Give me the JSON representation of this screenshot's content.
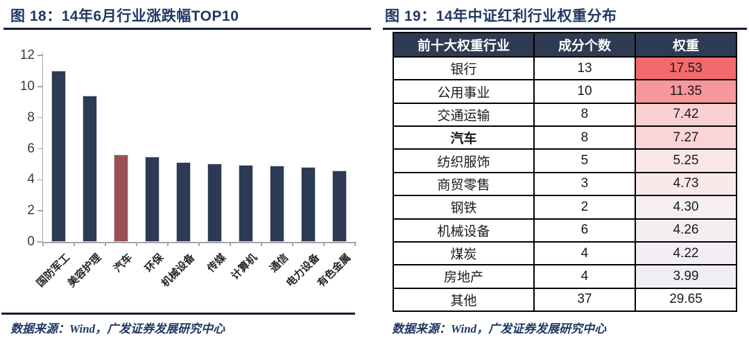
{
  "left_figure": {
    "title": "图 18：14年6月行业涨跌幅TOP10",
    "source": "数据来源：Wind，广发证券发展研究中心"
  },
  "right_figure": {
    "title": "图 19：14年中证红利行业权重分布",
    "source": "数据来源：Wind，广发证券发展研究中心"
  },
  "chart_data": [
    {
      "type": "bar",
      "title": "14年6月行业涨跌幅TOP10",
      "categories": [
        "国防军工",
        "美容护理",
        "汽车",
        "环保",
        "机械设备",
        "传媒",
        "计算机",
        "通信",
        "电力设备",
        "有色金属"
      ],
      "values": [
        11.0,
        9.4,
        5.6,
        5.5,
        5.15,
        5.05,
        4.95,
        4.9,
        4.8,
        4.6
      ],
      "highlight_index": 2,
      "highlight_category": "汽车",
      "xlabel": "",
      "ylabel": "",
      "ylim": [
        0,
        12
      ],
      "y_ticks": [
        0,
        2,
        4,
        6,
        8,
        10,
        12
      ],
      "grid": false,
      "legend": "none",
      "bar_color": "#2C3A53",
      "highlight_color": "#9A5052",
      "axis_color": "#A6A6A6"
    },
    {
      "type": "table",
      "title": "14年中证红利行业权重分布",
      "headers": [
        "前十大权重行业",
        "成分个数",
        "权重"
      ],
      "header_bg": "#2E3B52",
      "header_text_color": "#FFFFFF",
      "rows": [
        {
          "industry": "银行",
          "count": "13",
          "weight": "17.53",
          "weight_bg": "#F4696C",
          "highlight": false
        },
        {
          "industry": "公用事业",
          "count": "10",
          "weight": "11.35",
          "weight_bg": "#F79799",
          "highlight": false
        },
        {
          "industry": "交通运输",
          "count": "8",
          "weight": "7.42",
          "weight_bg": "#FAD1D3",
          "highlight": false
        },
        {
          "industry": "汽车",
          "count": "8",
          "weight": "7.27",
          "weight_bg": "#FAD4D6",
          "highlight": true
        },
        {
          "industry": "纺织服饰",
          "count": "5",
          "weight": "5.25",
          "weight_bg": "#FAE6E8",
          "highlight": false
        },
        {
          "industry": "商贸零售",
          "count": "3",
          "weight": "4.73",
          "weight_bg": "#F9E9EB",
          "highlight": false
        },
        {
          "industry": "钢铁",
          "count": "2",
          "weight": "4.30",
          "weight_bg": "#F5EEF2",
          "highlight": false
        },
        {
          "industry": "机械设备",
          "count": "6",
          "weight": "4.26",
          "weight_bg": "#F4EEF3",
          "highlight": false
        },
        {
          "industry": "煤炭",
          "count": "4",
          "weight": "4.22",
          "weight_bg": "#F2EEF4",
          "highlight": false
        },
        {
          "industry": "房地产",
          "count": "4",
          "weight": "3.99",
          "weight_bg": "#F0EDF5",
          "highlight": false
        },
        {
          "industry": "其他",
          "count": "37",
          "weight": "29.65",
          "weight_bg": "#FFFFFF",
          "highlight": false
        }
      ],
      "highlight_text_color": "#FF0000"
    }
  ],
  "colors": {
    "title_navy": "#1F3864",
    "rule": "#0E1B33",
    "bar_navy": "#2C3A53",
    "bar_red": "#9A5052",
    "header_navy": "#2E3B52"
  }
}
